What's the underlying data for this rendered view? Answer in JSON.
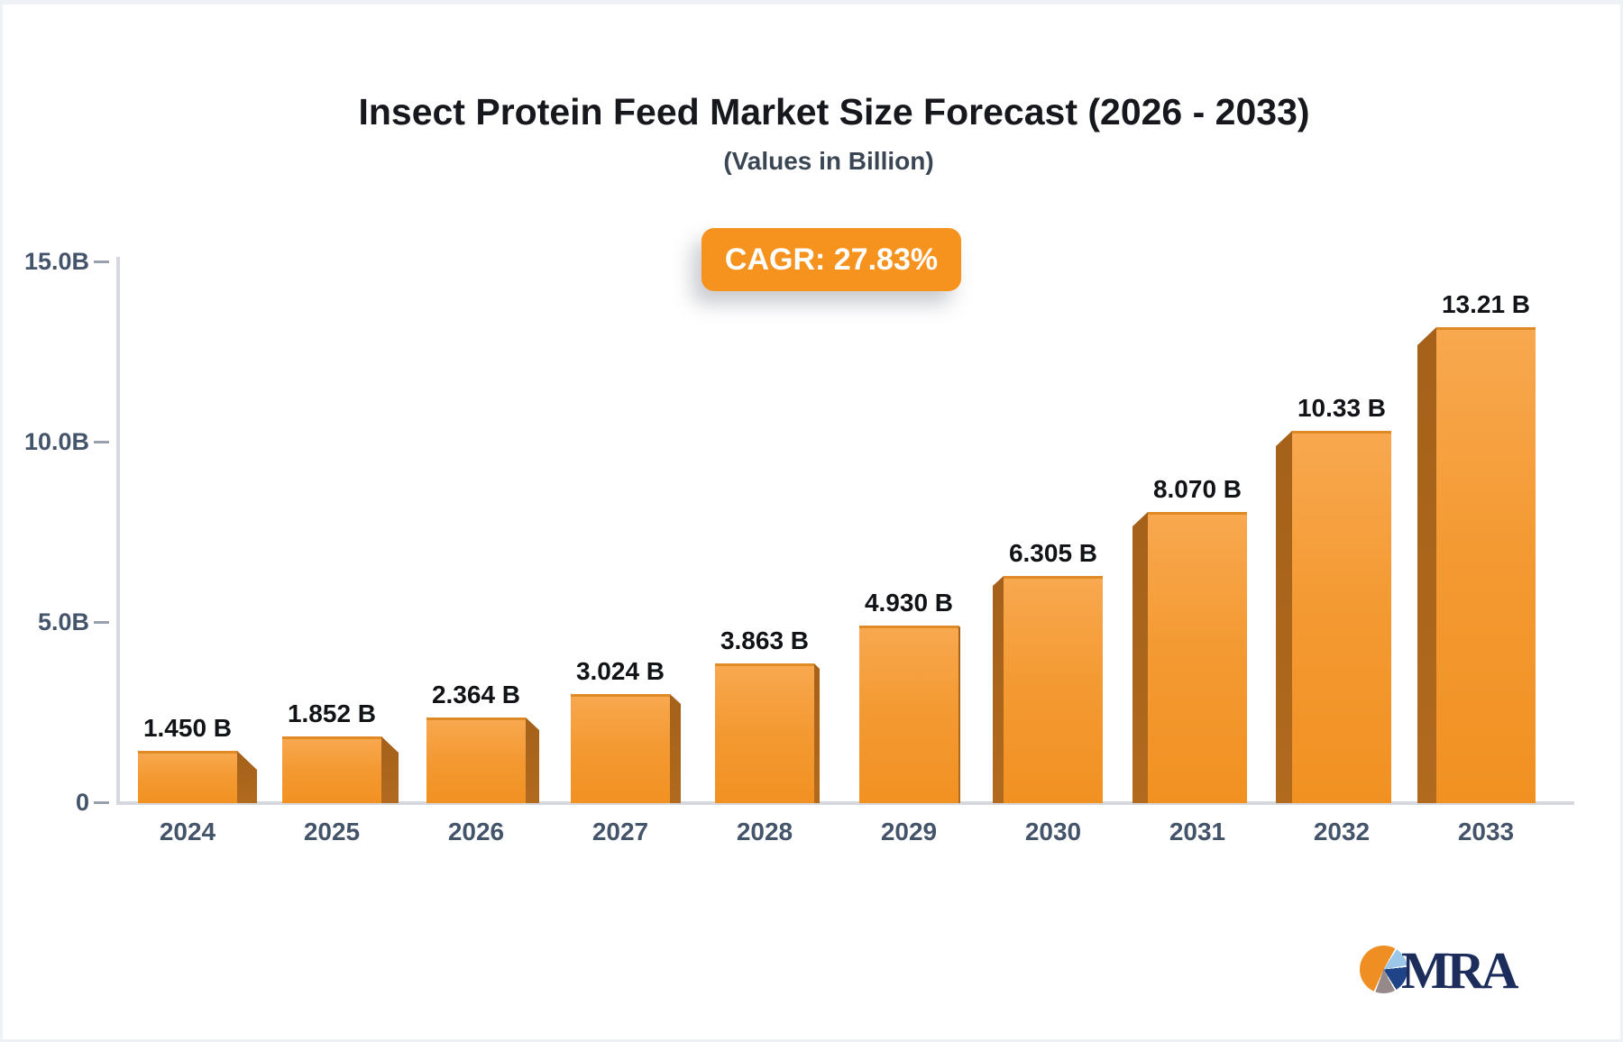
{
  "header": {
    "title": "Insect Protein Feed Market Size Forecast (2026 - 2033)",
    "subtitle": "(Values in Billion)"
  },
  "badge": {
    "label": "CAGR: 27.83%",
    "color": "#F6921E"
  },
  "chart_data": {
    "type": "bar",
    "title": "Insect Protein Feed Market Size Forecast (2026 - 2033)",
    "subtitle": "(Values in Billion)",
    "categories": [
      "2024",
      "2025",
      "2026",
      "2027",
      "2028",
      "2029",
      "2030",
      "2031",
      "2032",
      "2033"
    ],
    "values": [
      1.45,
      1.852,
      2.364,
      3.024,
      3.863,
      4.93,
      6.305,
      8.07,
      10.33,
      13.21
    ],
    "value_labels": [
      "1.450 B",
      "1.852 B",
      "2.364 B",
      "3.024 B",
      "3.863 B",
      "4.930 B",
      "6.305 B",
      "8.070 B",
      "10.33 B",
      "13.21 B"
    ],
    "unit": "Billion",
    "xlabel": "",
    "ylabel": "",
    "ylim": [
      0,
      15
    ],
    "yticks": [
      {
        "label": "15.0B",
        "value": 15
      },
      {
        "label": "10.0B",
        "value": 10
      },
      {
        "label": "5.0B",
        "value": 5
      },
      {
        "label": "0",
        "value": 0
      }
    ],
    "grid": false,
    "legend_position": "none",
    "colors": {
      "bar_top": "#F8A84F",
      "bar_bottom": "#F19122",
      "bar_top_edge": "#E08A25",
      "bar_side_3d": "#AC6519",
      "axis": "#D5D8DD",
      "tick_mark": "#98A1AC",
      "tick_label": "#44546A",
      "value_label": "#111316",
      "badge_orange": "#F6921E"
    },
    "layout_hints": {
      "pseudo_3d": true,
      "bar_3d_sides": [
        {
          "side": "right",
          "depth": 22
        },
        {
          "side": "right",
          "depth": 19
        },
        {
          "side": "right",
          "depth": 15
        },
        {
          "side": "right",
          "depth": 12
        },
        {
          "side": "right",
          "depth": 6
        },
        {
          "side": "right",
          "depth": 2
        },
        {
          "side": "left",
          "depth": 12
        },
        {
          "side": "left",
          "depth": 17
        },
        {
          "side": "left",
          "depth": 18
        },
        {
          "side": "left",
          "depth": 21
        }
      ]
    }
  },
  "logo": {
    "text": "MRA",
    "pie_colors": {
      "orange": "#EF8E23",
      "light_blue": "#9CC7E8",
      "navy": "#1E4386",
      "gray": "#97898A"
    },
    "text_color": "#1C2C5B"
  }
}
